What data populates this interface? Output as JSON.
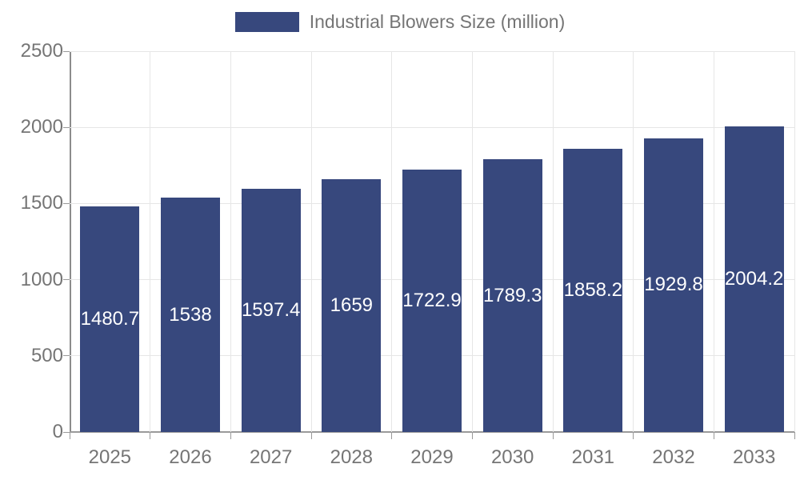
{
  "chart_data": {
    "type": "bar",
    "title": "Industrial Blowers Size (million)",
    "legend_entries": [
      "Industrial Blowers Size (million)"
    ],
    "legend_position": "top",
    "categories": [
      "2025",
      "2026",
      "2027",
      "2028",
      "2029",
      "2030",
      "2031",
      "2032",
      "2033"
    ],
    "series": [
      {
        "name": "Industrial Blowers Size (million)",
        "values": [
          1480.7,
          1538,
          1597.4,
          1659,
          1722.9,
          1789.3,
          1858.2,
          1929.8,
          2004.2
        ]
      }
    ],
    "xlabel": "",
    "ylabel": "",
    "ylim": [
      0,
      2500
    ],
    "yticks": [
      0,
      500,
      1000,
      1500,
      2000,
      2500
    ],
    "grid": true,
    "colors": {
      "bar": "#37487d",
      "bar_value_text": "#ffffff",
      "axis_text": "#757575",
      "gridline": "#e6e6e6",
      "axis_line": "#9a9a9a"
    }
  }
}
